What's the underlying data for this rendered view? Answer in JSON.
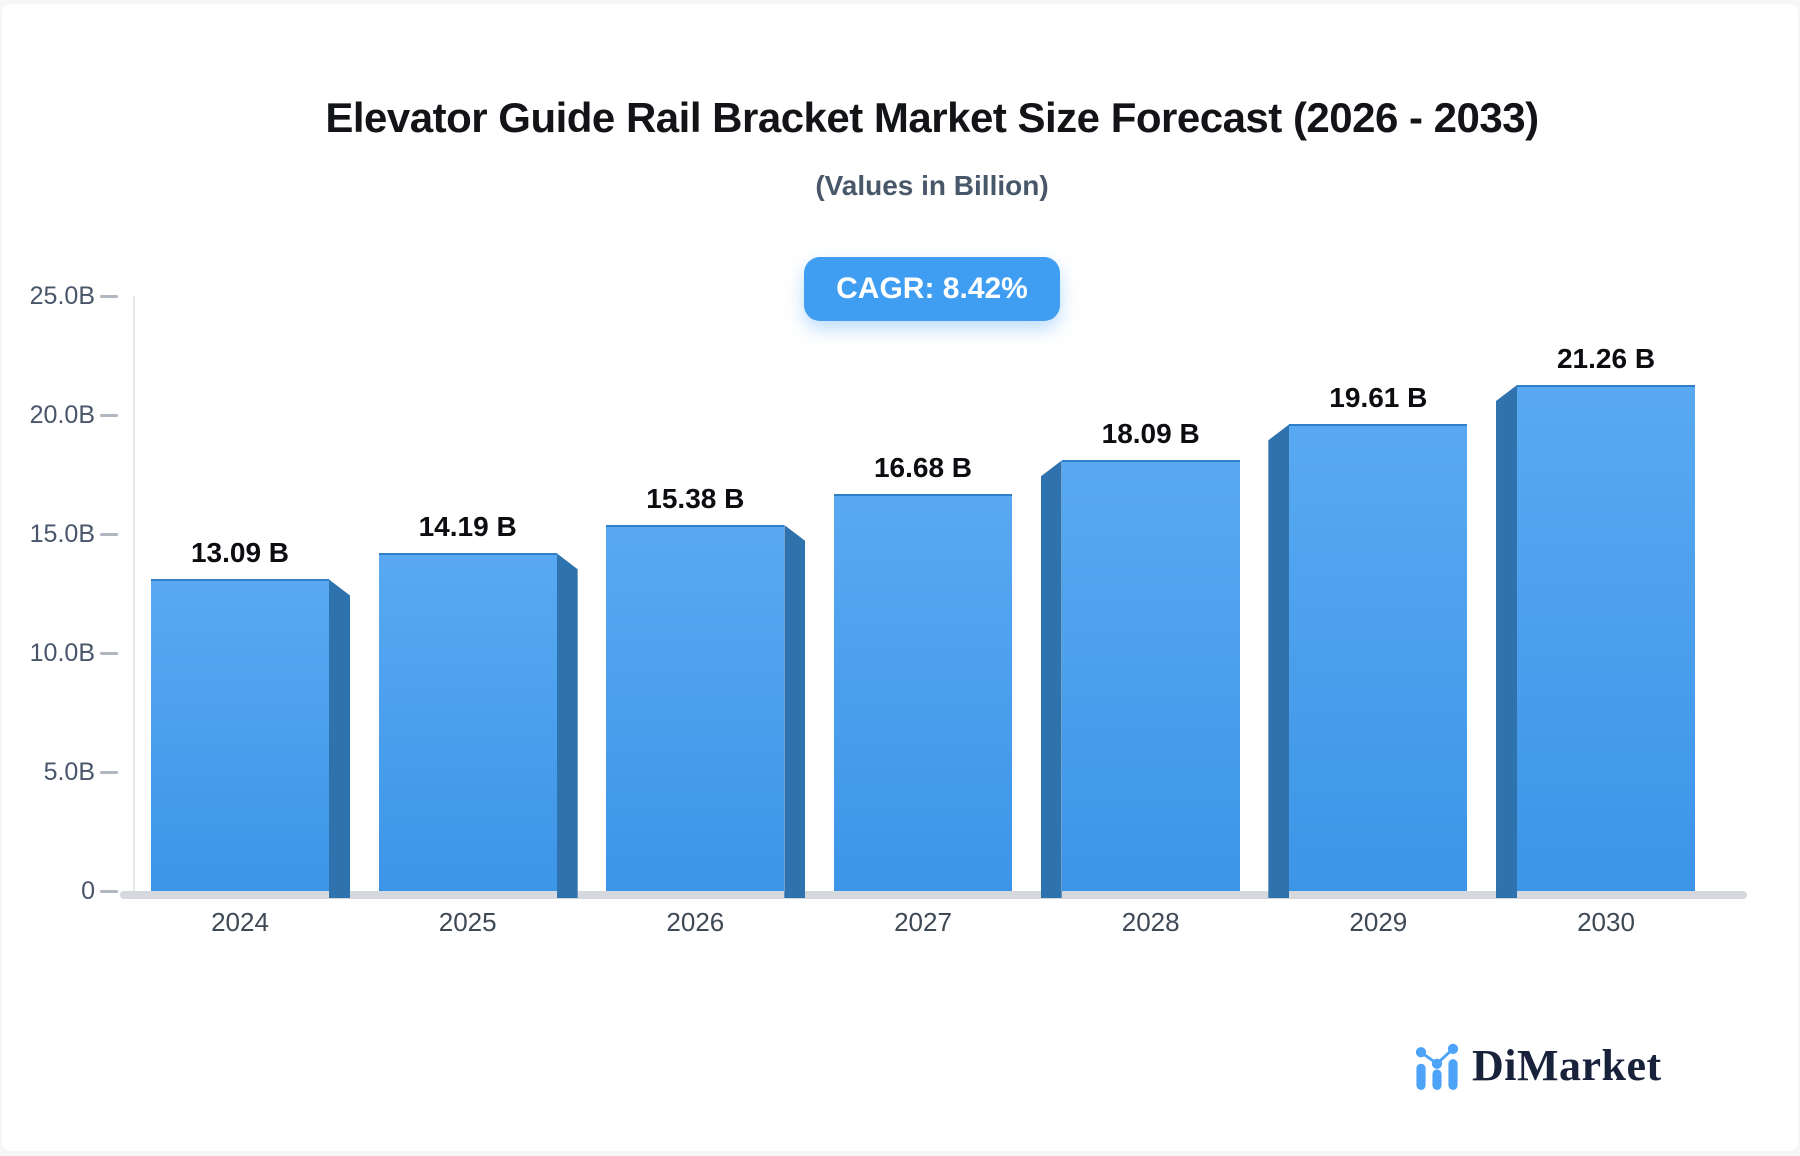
{
  "header": {
    "title": "Elevator Guide Rail Bracket Market Size Forecast (2026 - 2033)",
    "subtitle": "(Values in Billion)",
    "cagr_badge": "CAGR: 8.42%"
  },
  "chart_data": {
    "type": "bar",
    "title": "Elevator Guide Rail Bracket Market Size Forecast (2026 - 2033)",
    "subtitle": "(Values in Billion)",
    "annotation": "CAGR: 8.42%",
    "categories": [
      "2024",
      "2025",
      "2026",
      "2027",
      "2028",
      "2029",
      "2030"
    ],
    "values": [
      13.09,
      14.19,
      15.38,
      16.68,
      18.09,
      19.61,
      21.26
    ],
    "value_labels": [
      "13.09 B",
      "14.19 B",
      "15.38 B",
      "16.68 B",
      "18.09 B",
      "19.61 B",
      "21.26 B"
    ],
    "xlabel": "",
    "ylabel": "",
    "ylim": [
      0,
      25
    ],
    "y_tick_values": [
      25,
      20,
      15,
      10,
      5,
      0
    ],
    "y_tick_labels": [
      "25.0B",
      "20.0B",
      "15.0B",
      "10.0B",
      "5.0B",
      "0"
    ],
    "grid": false,
    "legend": false,
    "bar_style": "3d-perspective"
  },
  "footer": {
    "logo_text": "DiMarket",
    "logo_icon": "mini-bar-line-chart-icon"
  },
  "colors": {
    "page_background": "#f4f6f8",
    "card_background": "#ffffff",
    "bar_face_top": "#58a9f1",
    "bar_face_bottom": "#3d95e8",
    "bar_face_edge": "rgba(30,100,165,0.45)",
    "bar_side": "#2e72ae",
    "badge_background": "#3f9ef2",
    "badge_text": "#ffffff",
    "title_text": "#121417",
    "subtitle_text": "#49576b",
    "axis_text": "#49566a",
    "category_text": "#3e4956",
    "value_label_text": "#0b0d10",
    "baseline": "#d5d8dd",
    "tick_dash": "#b0b7c0",
    "logo_text_color": "#18223b",
    "logo_icon_color": "#4da3f7"
  }
}
